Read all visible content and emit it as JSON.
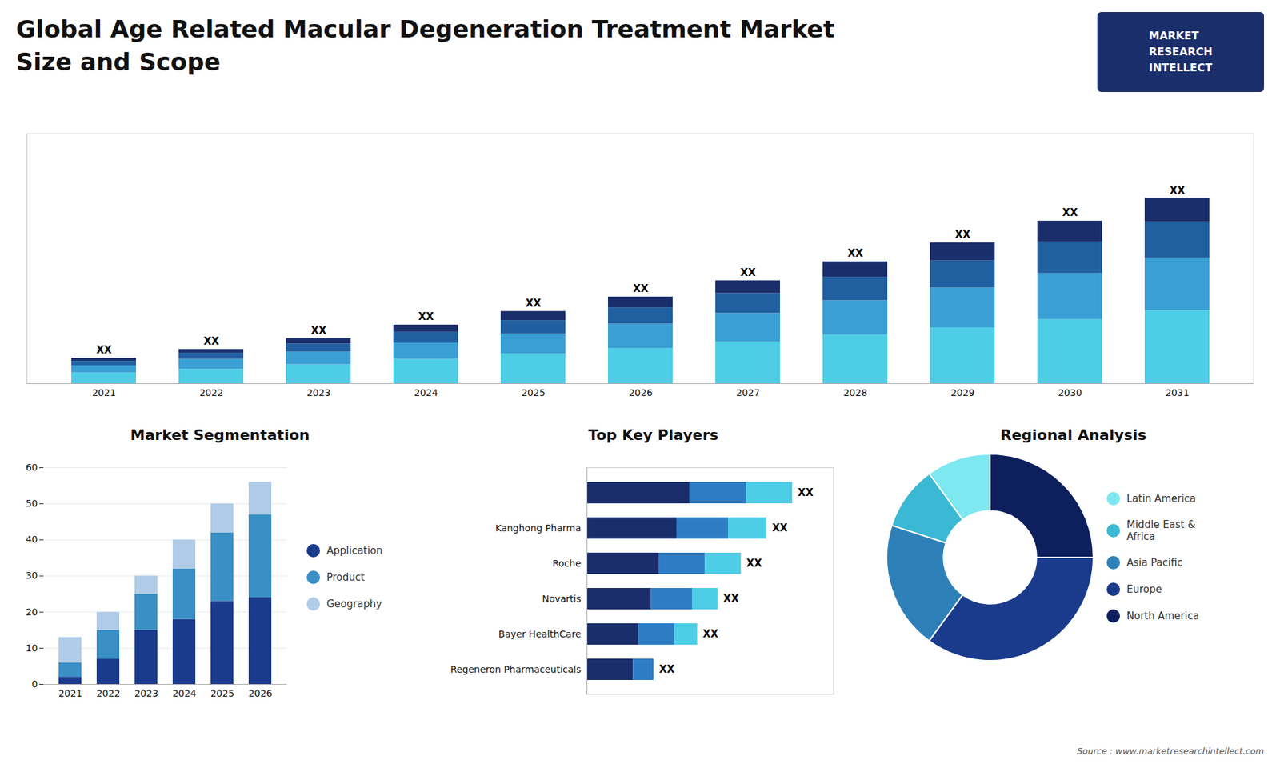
{
  "title": "Global Age Related Macular Degeneration Treatment Market\nSize and Scope",
  "annotations": [
    {
      "text": "MARKET\nRESEARCH\nINTELLECT"
    },
    {
      "text": "Source : www.marketresearchintellect.com"
    }
  ],
  "chart_data": [
    {
      "type": "bar",
      "stacked": true,
      "categories": [
        "2021",
        "2022",
        "2023",
        "2024",
        "2025",
        "2026",
        "2027",
        "2028",
        "2029",
        "2030",
        "2031"
      ],
      "series": [
        {
          "color": "#4ecde6",
          "values": [
            1.2,
            1.6,
            2.1,
            2.7,
            3.3,
            3.9,
            4.6,
            5.4,
            6.2,
            7.1,
            8.1
          ]
        },
        {
          "color": "#3a9fd4",
          "values": [
            0.8,
            1.1,
            1.4,
            1.8,
            2.2,
            2.7,
            3.2,
            3.8,
            4.4,
            5.1,
            5.8
          ]
        },
        {
          "color": "#2060a0",
          "values": [
            0.5,
            0.7,
            0.9,
            1.2,
            1.5,
            1.8,
            2.2,
            2.6,
            3.0,
            3.5,
            4.0
          ]
        },
        {
          "color": "#1a2e6c",
          "values": [
            0.3,
            0.4,
            0.6,
            0.8,
            1.0,
            1.2,
            1.4,
            1.7,
            2.0,
            2.3,
            2.6
          ]
        }
      ],
      "ylim": [
        0,
        27.675
      ],
      "tick_labels": "x",
      "grid": false,
      "annotations": [
        {
          "text": "XX"
        },
        {
          "text": "XX"
        },
        {
          "text": "XX"
        },
        {
          "text": "XX"
        },
        {
          "text": "XX"
        },
        {
          "text": "XX"
        },
        {
          "text": "XX"
        },
        {
          "text": "XX"
        },
        {
          "text": "XX"
        },
        {
          "text": "XX"
        },
        {
          "text": "XX"
        }
      ]
    },
    {
      "type": "bar",
      "title": "Market Segmentation",
      "stacked": true,
      "categories": [
        "2021",
        "2022",
        "2023",
        "2024",
        "2025",
        "2026"
      ],
      "series": [
        {
          "name": "Application",
          "color": "#1a3a8c",
          "values": [
            2,
            7,
            15,
            18,
            23,
            24
          ]
        },
        {
          "name": "Product",
          "color": "#3a8fc4",
          "values": [
            4,
            8,
            10,
            14,
            19,
            23
          ]
        },
        {
          "name": "Geography",
          "color": "#b0cce8",
          "values": [
            7,
            5,
            5,
            8,
            8,
            9
          ]
        }
      ],
      "ylim": [
        0,
        60
      ],
      "yticks": [
        0,
        10,
        20,
        30,
        40,
        50,
        60
      ],
      "grid": true,
      "legend": "right"
    },
    {
      "type": "bar",
      "title": "Top Key Players",
      "orientation": "horizontal",
      "stacked": true,
      "categories": [
        null,
        "Kanghong Pharma",
        "Roche",
        "Novartis",
        "Bayer HealthCare",
        "Regeneron Pharmaceuticals"
      ],
      "series": [
        {
          "color": "#1a2e6c",
          "values": [
            40,
            35,
            28,
            25,
            20,
            18
          ]
        },
        {
          "color": "#2e7dc4",
          "values": [
            22,
            20,
            18,
            16,
            14,
            8
          ]
        },
        {
          "color": "#4ecde6",
          "values": [
            18,
            15,
            14,
            10,
            9,
            0
          ]
        }
      ],
      "xlim": [
        0,
        96
      ],
      "tick_labels": "y",
      "grid": false,
      "annotations": [
        {
          "text": "XX"
        },
        {
          "text": "XX"
        },
        {
          "text": "XX"
        },
        {
          "text": "XX"
        },
        {
          "text": "XX"
        },
        {
          "text": "XX"
        }
      ]
    },
    {
      "type": "pie",
      "title": "Regional Analysis",
      "categories": [
        "Latin America",
        "Middle East &\nAfrica",
        "Asia Pacific",
        "Europe",
        "North America"
      ],
      "values": [
        10,
        10,
        20,
        35,
        25
      ],
      "colors": [
        "#7de8f0",
        "#3ab8d4",
        "#2e80b8",
        "#1a3a8c",
        "#0d1f5c"
      ],
      "legend": "right"
    }
  ]
}
